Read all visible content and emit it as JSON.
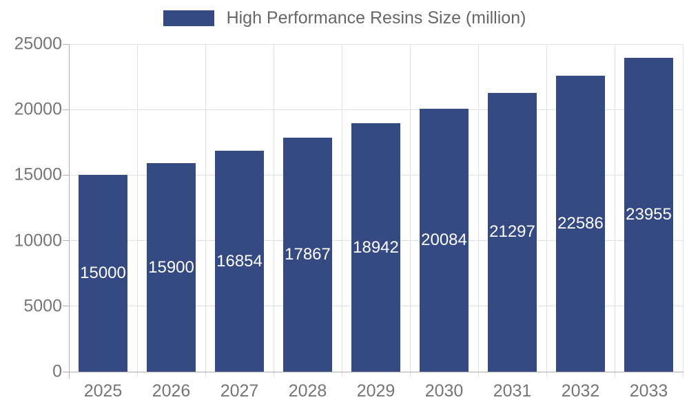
{
  "legend": {
    "label": "High Performance Resins Size (million)"
  },
  "chart_data": {
    "type": "bar",
    "title": "High Performance Resins Size (million)",
    "series_name": "High Performance Resins Size (million)",
    "categories": [
      "2025",
      "2026",
      "2027",
      "2028",
      "2029",
      "2030",
      "2031",
      "2032",
      "2033"
    ],
    "values": [
      15000,
      15900,
      16854,
      17867,
      18942,
      20084,
      21297,
      22586,
      23955
    ],
    "xlabel": "",
    "ylabel": "",
    "ylim": [
      0,
      25000
    ],
    "yticks": [
      0,
      5000,
      10000,
      15000,
      20000,
      25000
    ],
    "grid": true,
    "legend_position": "top",
    "bar_labels_inside": true
  },
  "colors": {
    "bar": "#354a83",
    "grid": "#e0e0e3",
    "axis": "#b0b0b3",
    "tick_text": "#757575",
    "title_text": "#666666",
    "value_label": "#ffffff",
    "background": "#ffffff"
  }
}
